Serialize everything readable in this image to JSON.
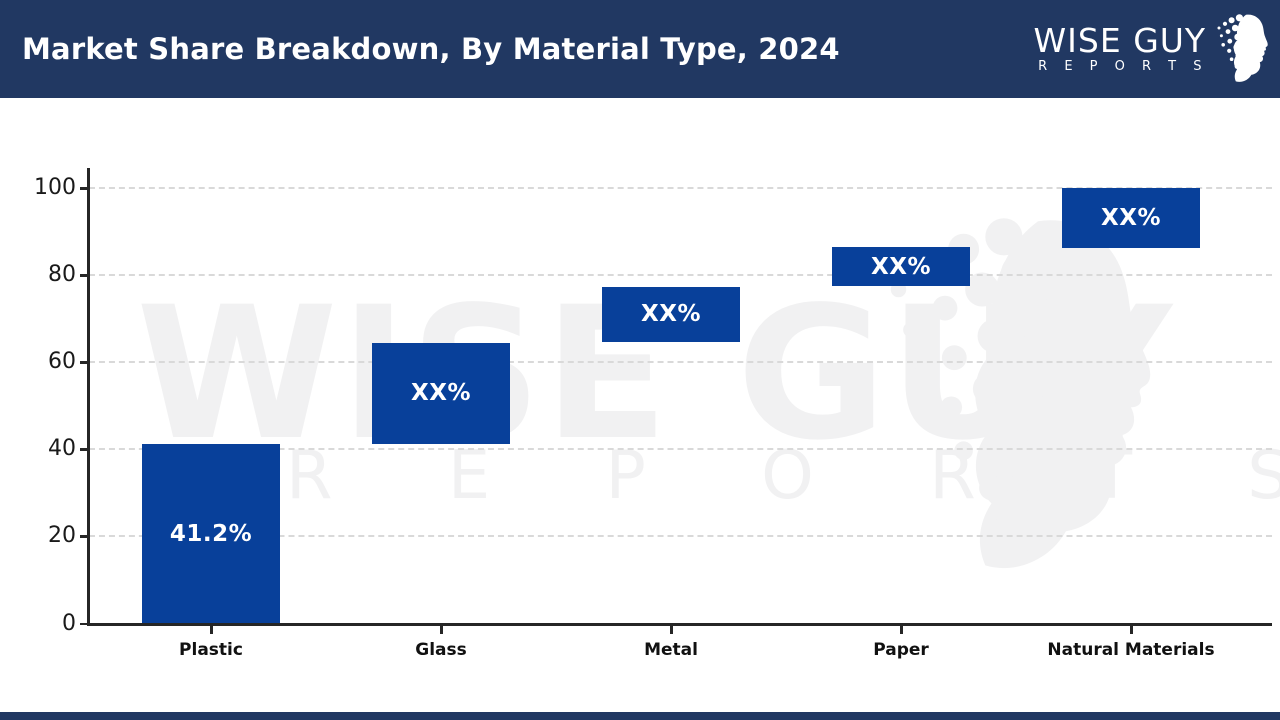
{
  "header": {
    "title": "Market Share Breakdown, By Material Type, 2024",
    "logo": {
      "line1": "WISE GUY",
      "line2": "R E P O R T S"
    }
  },
  "watermark": {
    "line1": "WISE GUY",
    "line2": "R E P O R T S"
  },
  "footer": {
    "visible": true
  },
  "colors": {
    "header_bg": "#213862",
    "bar": "#08409a",
    "grid": "#d9d9d9",
    "axis": "#262626",
    "watermark": "#f1f1f2",
    "bar_label": "#ffffff",
    "title_text": "#ffffff"
  },
  "chart_data": {
    "type": "bar",
    "subtype": "waterfall",
    "title": "Market Share Breakdown, By Material Type, 2024",
    "xlabel": "",
    "ylabel": "",
    "categories": [
      "Plastic",
      "Glass",
      "Metal",
      "Paper",
      "Natural Materials"
    ],
    "segments": [
      {
        "category": "Plastic",
        "start": 0,
        "end": 41.2,
        "label": "41.2%"
      },
      {
        "category": "Glass",
        "start": 41.2,
        "end": 64.5,
        "label": "XX%"
      },
      {
        "category": "Metal",
        "start": 64.6,
        "end": 77.3,
        "label": "XX%"
      },
      {
        "category": "Paper",
        "start": 77.4,
        "end": 86.4,
        "label": "XX%"
      },
      {
        "category": "Natural Materials",
        "start": 86.3,
        "end": 100,
        "label": "XX%"
      }
    ],
    "yticks": [
      0,
      20,
      40,
      60,
      80,
      100
    ],
    "ylim": [
      0,
      104
    ],
    "grid": "dashed-horizontal",
    "legend": "none"
  }
}
